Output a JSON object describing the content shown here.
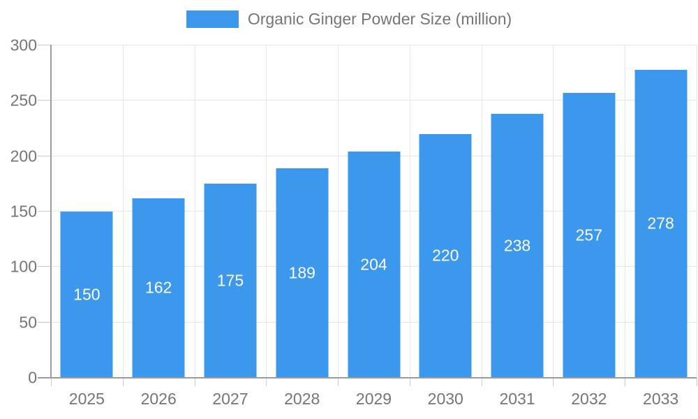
{
  "chart_data": {
    "type": "bar",
    "title": "Organic Ginger Powder Size (million)",
    "legend": [
      "Organic Ginger Powder Size (million)"
    ],
    "legend_position": "top-center",
    "categories": [
      "2025",
      "2026",
      "2027",
      "2028",
      "2029",
      "2030",
      "2031",
      "2032",
      "2033"
    ],
    "values": [
      150,
      162,
      175,
      189,
      204,
      220,
      238,
      257,
      278
    ],
    "xlabel": "",
    "ylabel": "",
    "ylim": [
      0,
      300
    ],
    "yticks": [
      0,
      50,
      100,
      150,
      200,
      250,
      300
    ],
    "grid": true,
    "value_labels_inside_bars": true,
    "colors": {
      "bar": "#3b98ed",
      "value_label": "#ffffff",
      "axis_text": "#757575",
      "axis_line": "#9b9b9b",
      "gridline": "#e6e6e6",
      "tick": "#c9c9c9",
      "background": "#ffffff"
    }
  }
}
